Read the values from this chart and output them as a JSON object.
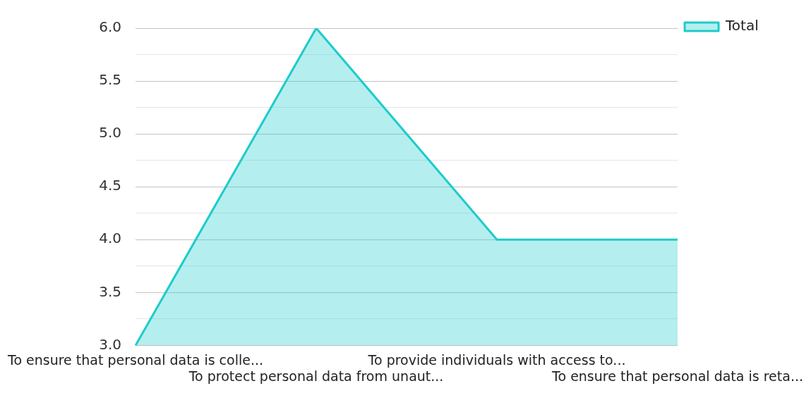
{
  "chart_data": {
    "type": "area",
    "categories": [
      "To ensure that personal data is colle...",
      "To protect personal data from unaut...",
      "To provide individuals with access to...",
      "To ensure that personal data is reta..."
    ],
    "series": [
      {
        "name": "Total",
        "color": "#1ecbcb",
        "values": [
          3,
          6,
          4,
          4
        ]
      }
    ],
    "ylim": [
      3,
      6
    ],
    "yticks": [
      {
        "value": 3,
        "label": "3.0"
      },
      {
        "value": 3.25,
        "label": null
      },
      {
        "value": 3.5,
        "label": "3.5"
      },
      {
        "value": 3.75,
        "label": null
      },
      {
        "value": 4,
        "label": "4.0"
      },
      {
        "value": 4.25,
        "label": null
      },
      {
        "value": 4.5,
        "label": "4.5"
      },
      {
        "value": 4.75,
        "label": null
      },
      {
        "value": 5,
        "label": "5.0"
      },
      {
        "value": 5.25,
        "label": null
      },
      {
        "value": 5.5,
        "label": "5.5"
      },
      {
        "value": 5.75,
        "label": null
      },
      {
        "value": 6,
        "label": "6.0"
      }
    ],
    "grid": "y",
    "legend": "top right"
  }
}
